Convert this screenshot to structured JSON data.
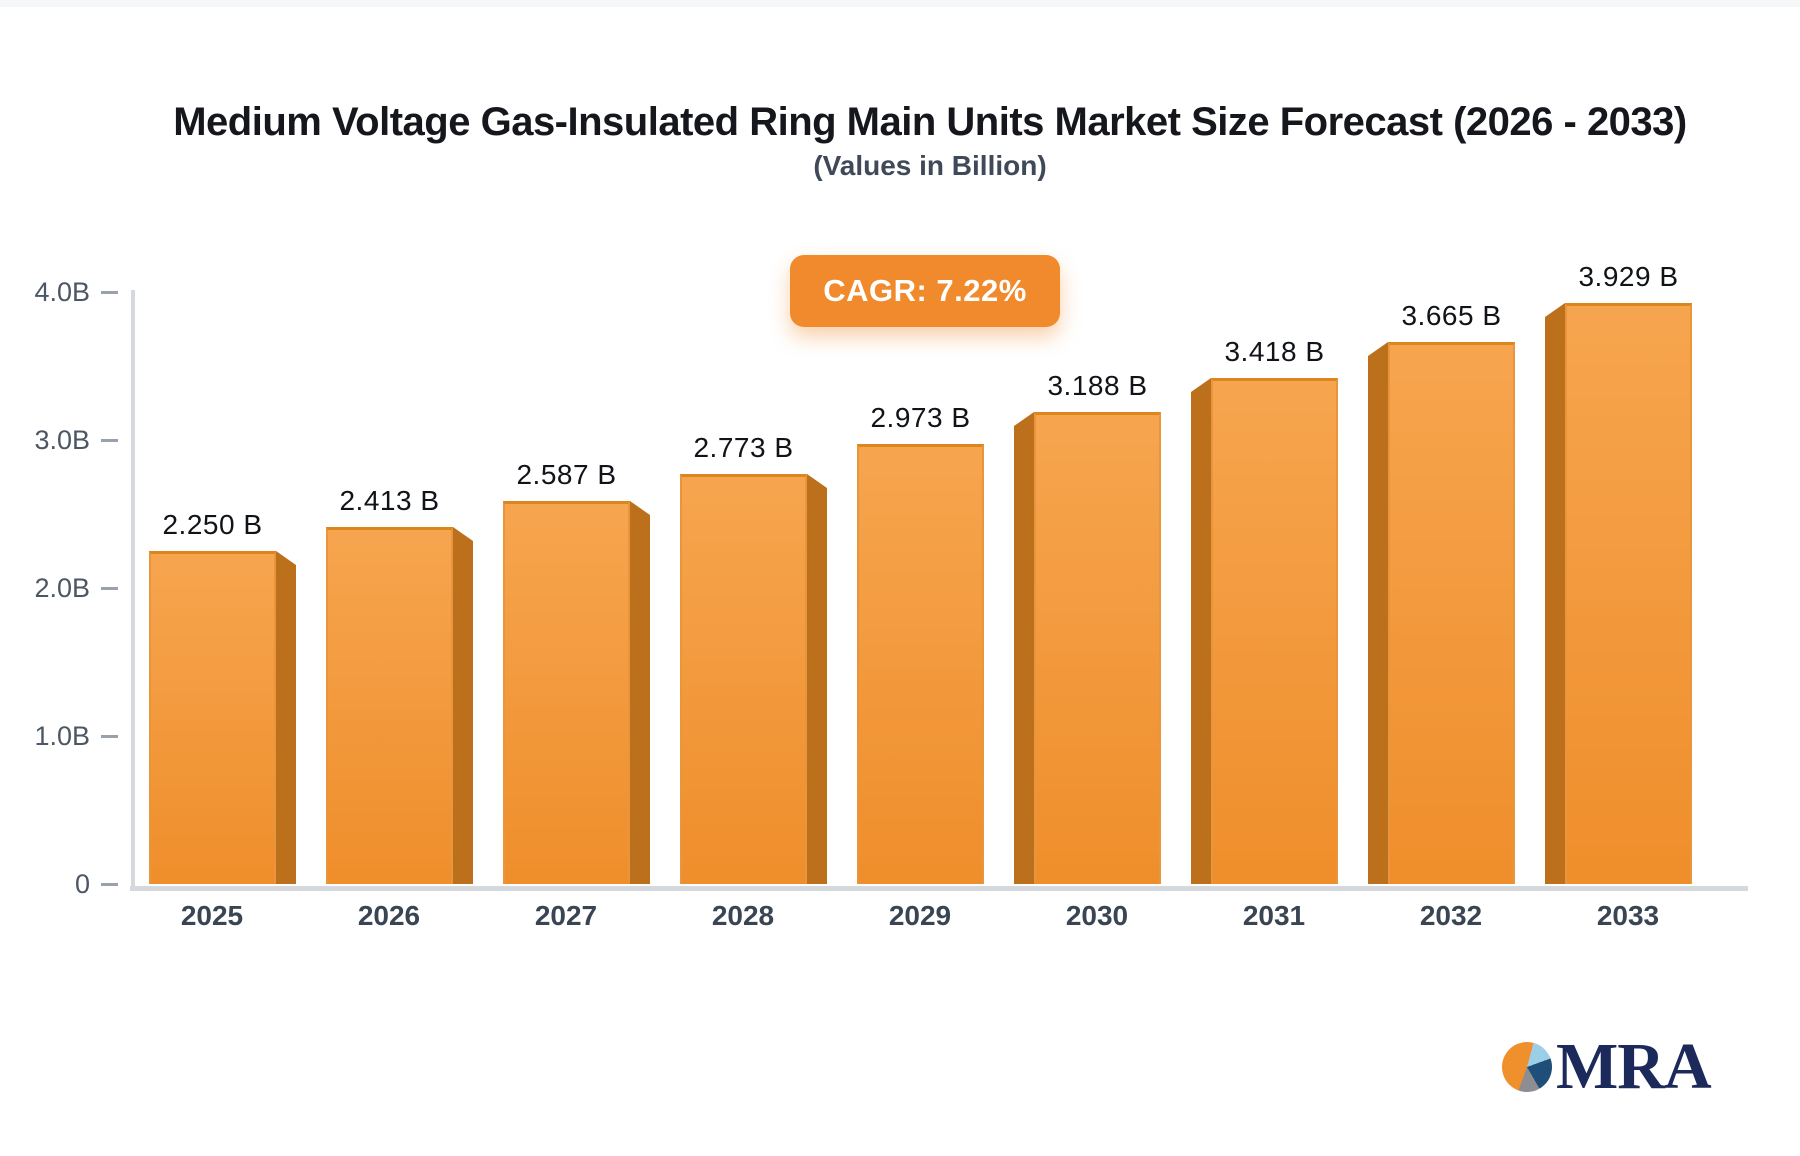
{
  "header": {
    "title": "Medium Voltage Gas-Insulated Ring Main Units Market Size Forecast (2026 - 2033)",
    "subtitle": "(Values in Billion)"
  },
  "badge": {
    "cagr_label": "CAGR: 7.22%"
  },
  "chart_data": {
    "type": "bar",
    "title": "Medium Voltage Gas-Insulated Ring Main Units Market Size Forecast (2026 - 2033)",
    "subtitle": "(Values in Billion)",
    "cagr": "7.22%",
    "categories": [
      "2025",
      "2026",
      "2027",
      "2028",
      "2029",
      "2030",
      "2031",
      "2032",
      "2033"
    ],
    "values": [
      2.25,
      2.413,
      2.587,
      2.773,
      2.973,
      3.188,
      3.418,
      3.665,
      3.929
    ],
    "value_labels": [
      "2.250 B",
      "2.413 B",
      "2.587 B",
      "2.773 B",
      "2.973 B",
      "3.188 B",
      "3.418 B",
      "3.665 B",
      "3.929 B"
    ],
    "y_tick_labels": [
      "0",
      "1.0B",
      "2.0B",
      "3.0B",
      "4.0B"
    ],
    "y_tick_values": [
      0,
      1.0,
      2.0,
      3.0,
      4.0
    ],
    "ylim": [
      0,
      4.0
    ],
    "unit": "Billion",
    "grid": "off",
    "legend": "none",
    "bar_style": "3d-beveled"
  },
  "colors": {
    "bar_front_top": "#f6a54f",
    "bar_front_bottom": "#ef8e2b",
    "bar_side": "#bd701c",
    "bar_border": "#dd851e",
    "badge_background": "#f1892d",
    "axis_line": "#d5d8dc",
    "tick": "#99a1ac",
    "axis_label": "#4c5664",
    "category_label": "#3a4554",
    "logo_navy": "#1b2a5a",
    "logo_orange": "#f0902c",
    "logo_lightblue": "#9ccee8",
    "logo_gray": "#8d8d92"
  },
  "logo": {
    "text": "MRA"
  }
}
